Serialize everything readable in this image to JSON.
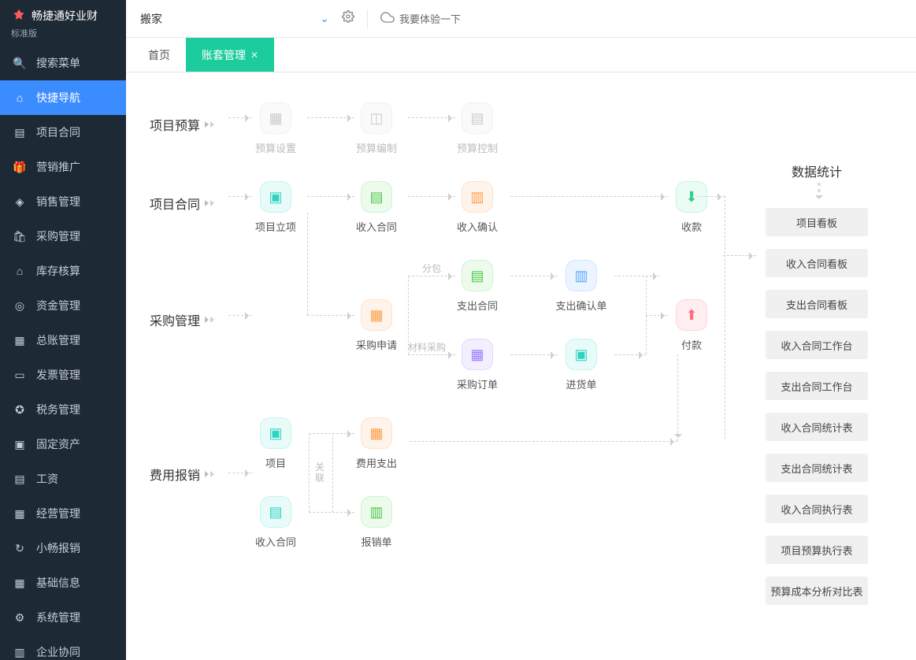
{
  "app": {
    "name": "畅捷通好业财",
    "edition": "标准版"
  },
  "nav": [
    {
      "label": "搜索菜单",
      "icon": "search"
    },
    {
      "label": "快捷导航",
      "icon": "home",
      "active": true
    },
    {
      "label": "项目合同",
      "icon": "doc"
    },
    {
      "label": "营销推广",
      "icon": "gift"
    },
    {
      "label": "销售管理",
      "icon": "tag"
    },
    {
      "label": "采购管理",
      "icon": "cart"
    },
    {
      "label": "库存核算",
      "icon": "warehouse"
    },
    {
      "label": "资金管理",
      "icon": "coin"
    },
    {
      "label": "总账管理",
      "icon": "ledger"
    },
    {
      "label": "发票管理",
      "icon": "invoice"
    },
    {
      "label": "税务管理",
      "icon": "tax"
    },
    {
      "label": "固定资产",
      "icon": "asset"
    },
    {
      "label": "工资",
      "icon": "salary"
    },
    {
      "label": "经营管理",
      "icon": "manage"
    },
    {
      "label": "小畅报销",
      "icon": "refresh"
    },
    {
      "label": "基础信息",
      "icon": "info"
    },
    {
      "label": "系统管理",
      "icon": "system"
    },
    {
      "label": "企业协同",
      "icon": "collab"
    }
  ],
  "topbar": {
    "dropdown": "搬家",
    "experience": "我要体验一下"
  },
  "tabs": [
    {
      "label": "首页"
    },
    {
      "label": "账套管理",
      "active": true,
      "closable": true
    }
  ],
  "sections": {
    "s1": "项目预算",
    "s2": "项目合同",
    "s3": "采购管理",
    "s4": "费用报销"
  },
  "nodes": {
    "n1": "预算设置",
    "n2": "预算编制",
    "n3": "预算控制",
    "n4": "项目立项",
    "n5": "收入合同",
    "n6": "收入确认",
    "n7": "收款",
    "n8": "采购申请",
    "n9": "支出合同",
    "n10": "支出确认单",
    "n11": "付款",
    "n12": "采购订单",
    "n13": "进货单",
    "n14": "项目",
    "n15": "费用支出",
    "n16": "收入合同",
    "n17": "报销单"
  },
  "edgeLabels": {
    "fb": "分包",
    "cl": "材料采购",
    "gl": "关\n联"
  },
  "right": {
    "title": "数据统计",
    "buttons": [
      "项目看板",
      "收入合同看板",
      "支出合同看板",
      "收入合同工作台",
      "支出合同工作台",
      "收入合同统计表",
      "支出合同统计表",
      "收入合同执行表",
      "项目预算执行表",
      "预算成本分析对比表"
    ]
  },
  "colors": {
    "sidebar_bg": "#1e2936",
    "sidebar_active": "#3b8cff",
    "tab_active": "#1CCC9C",
    "dashed": "#d0d0d0",
    "stat_bg": "#f0f0f0",
    "cyan": "#2Ed3c1",
    "green": "#4fc94f",
    "orange": "#ff9e4a",
    "emerald": "#2bcf8a",
    "blue": "#5aa7ff",
    "red": "#ff6b7d",
    "purple": "#9c7cff"
  }
}
